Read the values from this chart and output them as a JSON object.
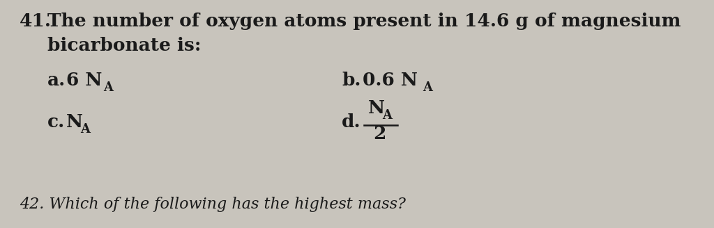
{
  "background_color": "#c8c4bc",
  "text_color": "#1a1a1a",
  "q_number": "41.",
  "q_line1": "The number of oxygen atoms present in 14.6 g of magnesium",
  "q_line2": "bicarbonate is:",
  "opt_a_label": "a.",
  "opt_a_text": "6 N",
  "opt_a_sub": "A",
  "opt_b_label": "b.",
  "opt_b_text": "0.6 N",
  "opt_b_sub": "A",
  "opt_c_label": "c.",
  "opt_c_text": "N",
  "opt_c_sub": "A",
  "opt_d_label": "d.",
  "opt_d_num": "N",
  "opt_d_num_sub": "A",
  "opt_d_den": "2",
  "footer": "42. Which of the following has the highest mass?",
  "fs_main": 19,
  "fs_sub": 13,
  "fs_footer": 16
}
